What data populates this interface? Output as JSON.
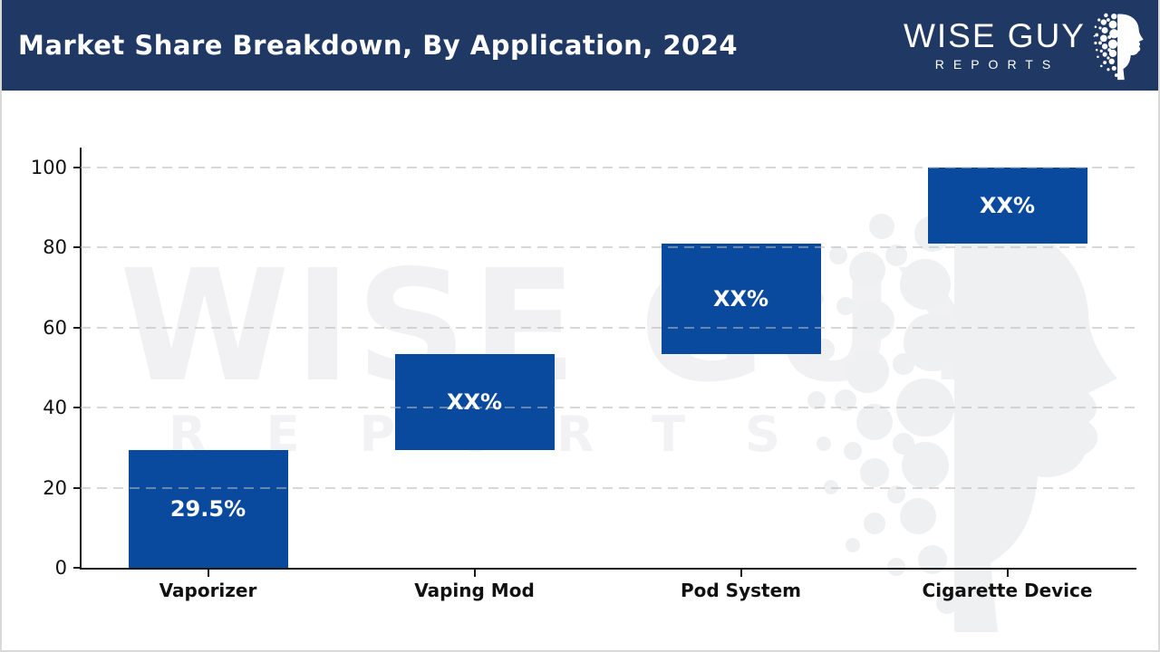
{
  "header": {
    "title": "Market Share Breakdown, By Application, 2024",
    "logo": {
      "line1": "WISE GUY",
      "line2": "REPORTS"
    }
  },
  "watermark": {
    "line1": "WISE GUY",
    "line2": "REPORTS"
  },
  "chart_data": {
    "type": "bar",
    "subtype": "waterfall",
    "title": "Market Share Breakdown, By Application, 2024",
    "xlabel": "",
    "ylabel": "",
    "categories": [
      "Vaporizer",
      "Vaping Mod",
      "Pod System",
      "Cigarette Device"
    ],
    "segments": [
      {
        "category": "Vaporizer",
        "label": "29.5%",
        "value": 29.5,
        "start": 0,
        "end": 29.5
      },
      {
        "category": "Vaping Mod",
        "label": "XX%",
        "value": 23.8,
        "start": 29.5,
        "end": 53.3
      },
      {
        "category": "Pod System",
        "label": "XX%",
        "value": 27.7,
        "start": 53.3,
        "end": 81.0
      },
      {
        "category": "Cigarette Device",
        "label": "XX%",
        "value": 19.0,
        "start": 81.0,
        "end": 100.0
      }
    ],
    "ylim": [
      0,
      100
    ],
    "yticks": [
      0,
      20,
      40,
      60,
      80,
      100
    ],
    "grid": "horizontal-dashed",
    "legend": "none",
    "colors": {
      "bar": "#0a4a9e",
      "bar_label": "#ffffff",
      "header_bg": "#1f3864",
      "axis": "#1a1a1a",
      "gridline": "#bcbcbc",
      "watermark": "#f1f1f3"
    }
  }
}
